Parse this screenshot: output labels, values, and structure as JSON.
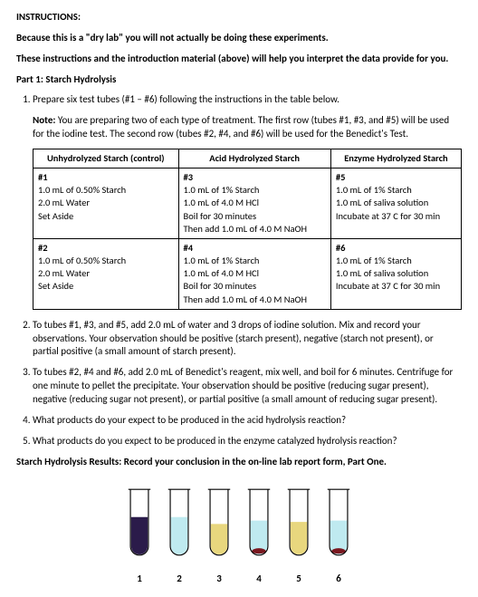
{
  "heading": "INSTRUCTIONS:",
  "intro1": "Because this is a \"dry lab\" you will not actually be doing these experiments.",
  "intro2": "These instructions and the introduction material (above) will help you interpret the data provide for you.",
  "part1_title": "Part 1: Starch Hydrolysis",
  "step1": "Prepare six test tubes (#1 – #6) following the instructions in the table below.",
  "note_label": "Note:",
  "note_text": " You are preparing two of each type of treatment. The first row (tubes #1, #3, and #5) will be used for the iodine test. The second row (tubes #2, #4, and #6) will be used for the Benedict's Test.",
  "table": {
    "headers": [
      "Unhydrolyzed Starch (control)",
      "Acid Hydrolyzed Starch",
      "Enzyme Hydrolyzed Starch"
    ],
    "rows": [
      [
        {
          "id": "#1",
          "lines": [
            "1.0 mL of 0.50% Starch",
            "2.0 mL Water",
            "Set Aside"
          ]
        },
        {
          "id": "#3",
          "lines": [
            "1.0 mL of 1% Starch",
            "1.0 mL of 4.0 M HCl",
            "Boil for 30 minutes",
            "Then add 1.0 mL of 4.0 M NaOH"
          ]
        },
        {
          "id": "#5",
          "lines": [
            "1.0 mL of 1% Starch",
            "1.0 mL of saliva solution",
            "Incubate at 37 C for 30 min"
          ]
        }
      ],
      [
        {
          "id": "#2",
          "lines": [
            "1.0 mL of 0.50% Starch",
            "2.0 mL Water",
            "Set Aside"
          ]
        },
        {
          "id": "#4",
          "lines": [
            "1.0 mL of 1% Starch",
            "1.0 mL of 4.0 M HCl",
            "Boil for 30 minutes",
            "Then add 1.0 mL of 4.0 M NaOH"
          ]
        },
        {
          "id": "#6",
          "lines": [
            "1.0 mL of 1% Starch",
            "1.0 mL of saliva solution",
            "Incubate at 37 C for 30 min"
          ]
        }
      ]
    ]
  },
  "step2": "To tubes #1, #3, and #5, add 2.0 mL of water and 3 drops of iodine solution. Mix and record your observations. Your observation should be positive (starch present), negative (starch not present), or partial positive (a small amount of starch present).",
  "step3": "To tubes #2, #4 and #6, add 2.0 mL of Benedict's reagent, mix well, and boil for 6 minutes. Centrifuge for one minute to pellet the precipitate. Your observation should be positive (reducing sugar present), negative (reducing sugar not present), or partial positive (a small amount of reducing sugar present).",
  "step4": "What products do your expect to be produced in the acid hydrolysis reaction?",
  "step5": "What products do you expect to be produced in the enzyme catalyzed hydrolysis reaction?",
  "results_heading": "Starch Hydrolysis Results: Record your conclusion in the on-line lab report form, Part One.",
  "tubes": [
    {
      "label": "1",
      "fill_height": 55,
      "fill_color": "#2b1b4a",
      "pellet": null
    },
    {
      "label": "2",
      "fill_height": 55,
      "fill_color": "#bfeaf0",
      "pellet": null
    },
    {
      "label": "3",
      "fill_height": 45,
      "fill_color": "#e8d77e",
      "pellet": null
    },
    {
      "label": "4",
      "fill_height": 50,
      "fill_color": "#bfeaf0",
      "pellet": "#7a1820"
    },
    {
      "label": "5",
      "fill_height": 48,
      "fill_color": "#e8d77e",
      "pellet": null
    },
    {
      "label": "6",
      "fill_height": 50,
      "fill_color": "#bfeaf0",
      "pellet": "#7a1820"
    }
  ],
  "tube_outline": "#000000",
  "tube_width": 26,
  "tube_height": 95
}
